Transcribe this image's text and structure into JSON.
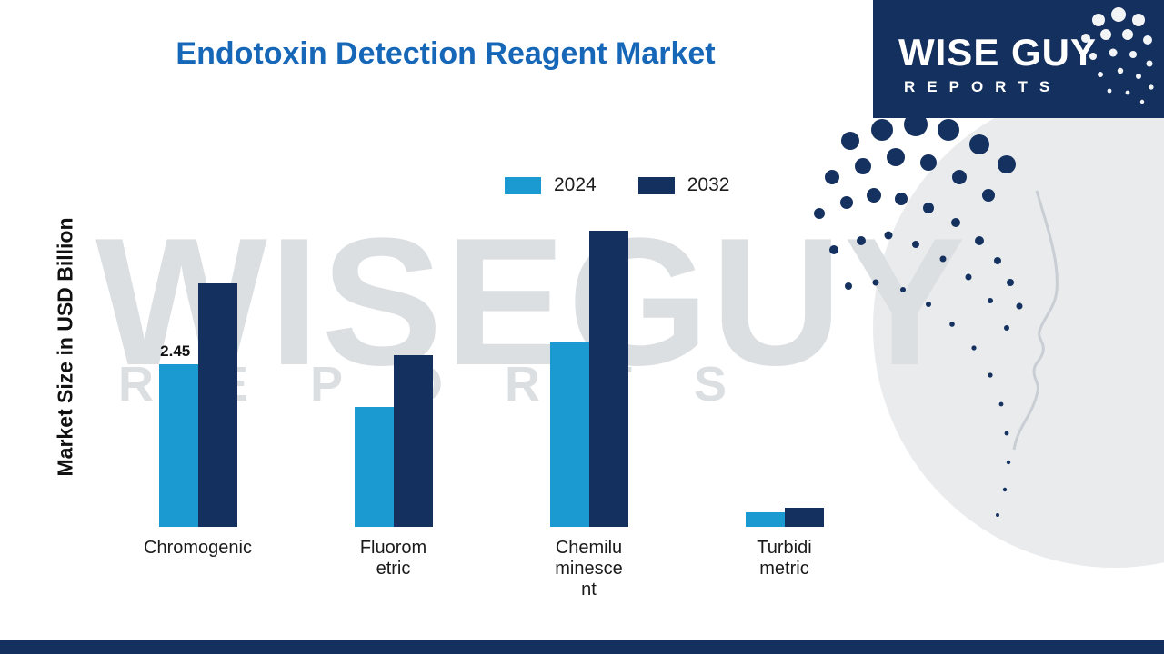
{
  "header": {
    "title": "Endotoxin Detection Reagent Market"
  },
  "logo": {
    "line1": "WISE GUY",
    "line2": "REPORTS"
  },
  "watermark": {
    "line1": "WISEGUY",
    "line2": "REPORTS"
  },
  "colors": {
    "series_2024": "#1b9ad2",
    "series_2032": "#14305e",
    "title": "#1767b8",
    "footer": "#14305e"
  },
  "chart_data": {
    "type": "bar",
    "title": "Endotoxin Detection Reagent Market",
    "xlabel": "",
    "ylabel": "Market Size in USD Billion",
    "ylim": [
      0,
      5
    ],
    "grid": false,
    "legend_position": "top",
    "categories": [
      "Chromogenic",
      "Fluorom\netric",
      "Chemilu\nminesce\nnt",
      "Turbidi\nmetric"
    ],
    "series": [
      {
        "name": "2024",
        "color": "#1b9ad2",
        "values": [
          2.45,
          1.81,
          2.78,
          0.22
        ]
      },
      {
        "name": "2032",
        "color": "#14305e",
        "values": [
          3.67,
          2.59,
          4.47,
          0.29
        ]
      }
    ],
    "data_labels": [
      {
        "series": 0,
        "category": 0,
        "text": "2.45"
      }
    ]
  }
}
